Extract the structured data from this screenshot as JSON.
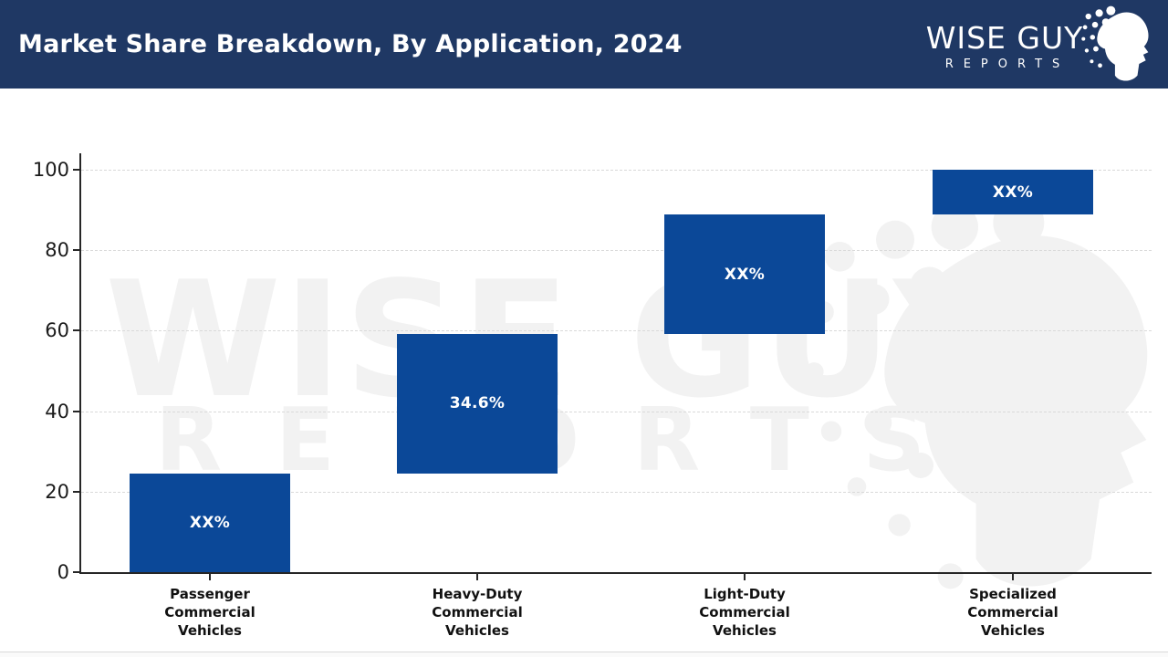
{
  "header": {
    "title": "Market Share Breakdown, By Application, 2024",
    "logo_line1": "WISE GUY",
    "logo_line2": "REPORTS",
    "bg_color": "#1f3864"
  },
  "watermark": {
    "line1": "WISE GUY",
    "line2": "REPORTS"
  },
  "colors": {
    "header_bg": "#1f3864",
    "bar_fill": "#0b4898",
    "grid_line": "#d9d9d9",
    "axis_text": "#1a1a1a",
    "watermark_gray": "#f2f2f2",
    "bar_label_text": "#ffffff"
  },
  "chart_data": {
    "type": "bar",
    "subtype": "waterfall (stacked segment per category)",
    "title": "Market Share Breakdown, By Application, 2024",
    "categories": [
      [
        "Passenger",
        "Commercial",
        "Vehicles"
      ],
      [
        "Heavy-Duty",
        "Commercial",
        "Vehicles"
      ],
      [
        "Light-Duty",
        "Commercial",
        "Vehicles"
      ],
      [
        "Specialized",
        "Commercial",
        "Vehicles"
      ]
    ],
    "segments": [
      {
        "start": 0,
        "end": 24.6,
        "value": 24.6,
        "label": "XX%"
      },
      {
        "start": 24.6,
        "end": 59.2,
        "value": 34.6,
        "label": "34.6%"
      },
      {
        "start": 59.2,
        "end": 88.8,
        "value": 29.6,
        "label": "XX%"
      },
      {
        "start": 88.8,
        "end": 100,
        "value": 11.2,
        "label": "XX%"
      }
    ],
    "yticks": [
      0,
      20,
      40,
      60,
      80,
      100
    ],
    "ylim": [
      0,
      105
    ],
    "xlabel": "",
    "ylabel": "",
    "grid": "horizontal dashed",
    "legend": "none"
  }
}
